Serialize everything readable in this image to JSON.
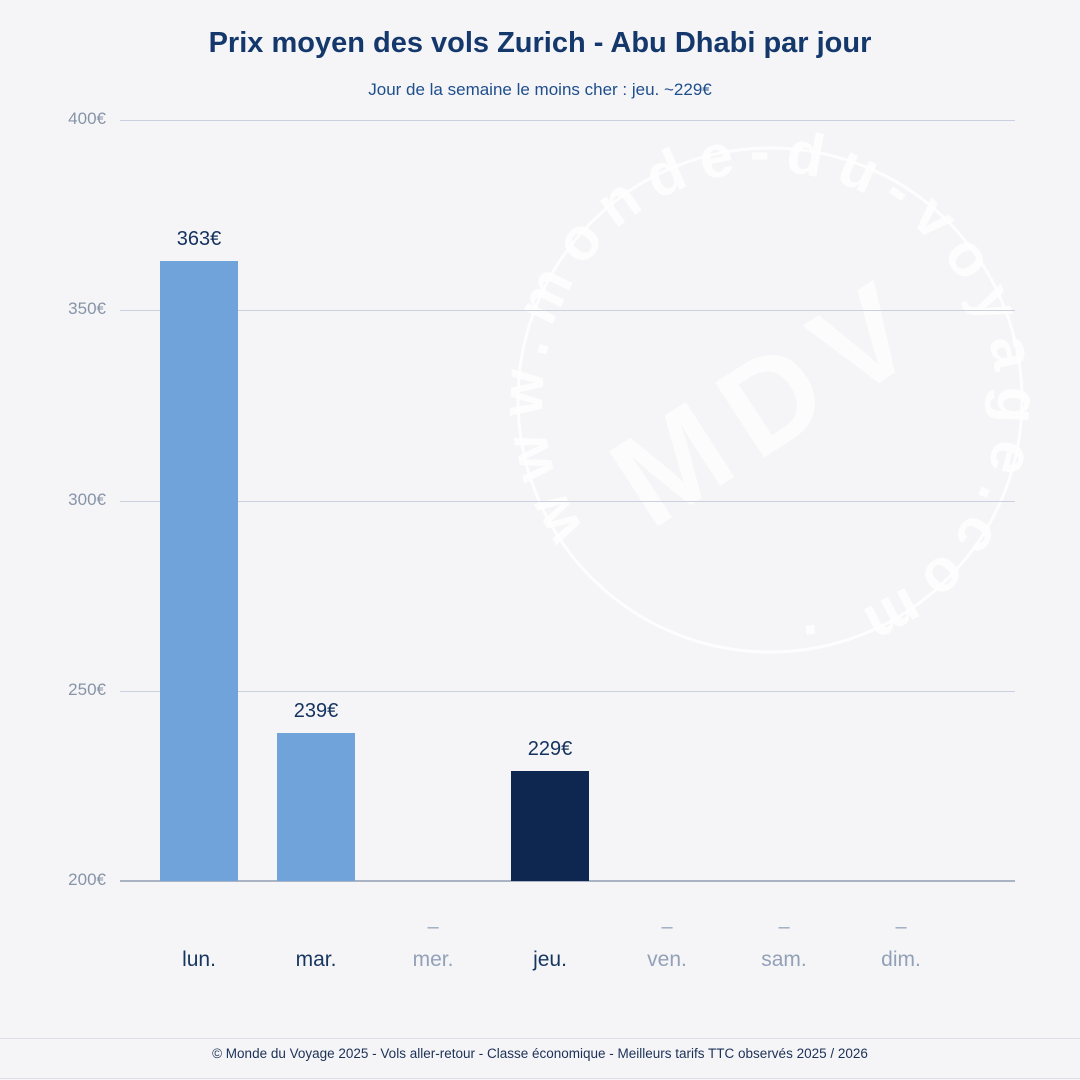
{
  "chart_data": {
    "type": "bar",
    "title": "Prix moyen des vols Zurich - Abu Dhabi par jour",
    "subtitle": "Jour de la semaine le moins cher : jeu. ~229€",
    "categories": [
      "lun.",
      "mar.",
      "mer.",
      "jeu.",
      "ven.",
      "sam.",
      "dim."
    ],
    "values": [
      363,
      239,
      null,
      229,
      null,
      null,
      null
    ],
    "value_labels": [
      "363€",
      "239€",
      null,
      "229€",
      null,
      null,
      null
    ],
    "no_data_marker": "–",
    "ylim": [
      200,
      400
    ],
    "yticks": [
      200,
      250,
      300,
      350,
      400
    ],
    "ytick_labels": [
      "200€",
      "250€",
      "300€",
      "350€",
      "400€"
    ],
    "highlight_index": 3,
    "grid": true,
    "legend": "none",
    "colors": {
      "bar": "#6fa3da",
      "bar_highlight": "#0d2751",
      "title": "#14386b",
      "subtitle": "#1e4e8c",
      "value_label": "#14325e",
      "day_active": "#17365f",
      "day_inactive": "#93a1b8",
      "ytick": "#8794a8",
      "gridline": "#c9d1df",
      "baseline": "#a9b3c3",
      "background": "#f5f5f7"
    }
  },
  "watermark": {
    "ring_text": "www.monde-du-voyage.com .",
    "center_text": "MDV"
  },
  "footer": {
    "text": "© Monde du Voyage 2025 - Vols aller-retour - Classe économique - Meilleurs tarifs TTC observés 2025 / 2026"
  }
}
